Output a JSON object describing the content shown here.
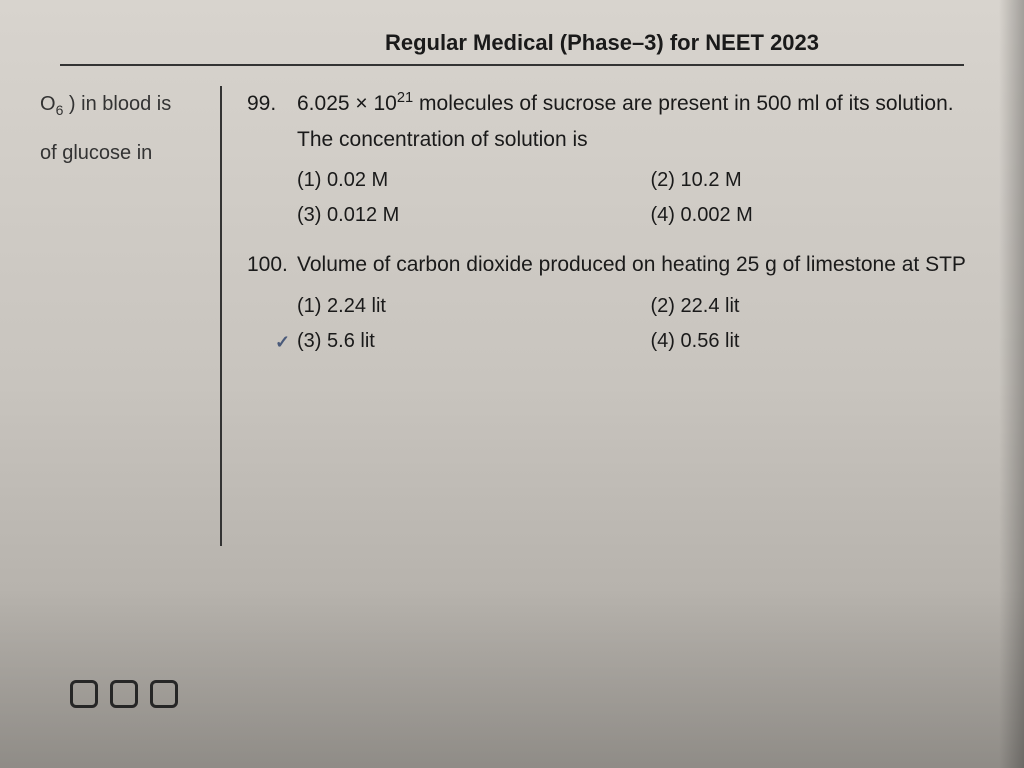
{
  "header": {
    "title": "Regular Medical (Phase–3) for NEET 2023"
  },
  "left_column": {
    "fragment1_prefix": "O",
    "fragment1_sub": "6",
    "fragment1_suffix": " ) in blood is",
    "fragment2": "of glucose in"
  },
  "questions": [
    {
      "number": "99.",
      "text_pre": "6.025 × 10",
      "text_exp": "21",
      "text_post": " molecules of sucrose are present in 500 ml of its solution. The concentration of solution is",
      "options": [
        {
          "label": "(1)",
          "value": "0.02 M",
          "checked": false
        },
        {
          "label": "(2)",
          "value": "10.2 M",
          "checked": false
        },
        {
          "label": "(3)",
          "value": "0.012 M",
          "checked": false
        },
        {
          "label": "(4)",
          "value": "0.002 M",
          "checked": false
        }
      ]
    },
    {
      "number": "100.",
      "text_pre": "Volume of carbon dioxide produced on heating 25 g of limestone at STP",
      "text_exp": "",
      "text_post": "",
      "options": [
        {
          "label": "(1)",
          "value": "2.24 lit",
          "checked": false
        },
        {
          "label": "(2)",
          "value": "22.4 lit",
          "checked": false
        },
        {
          "label": "(3)",
          "value": "5.6 lit",
          "checked": true
        },
        {
          "label": "(4)",
          "value": "0.56 lit",
          "checked": false
        }
      ]
    }
  ],
  "colors": {
    "text": "#1a1a1a",
    "check": "#4a5a7a",
    "bg_top": "#d8d4ce",
    "bg_bottom": "#a8a49e"
  }
}
